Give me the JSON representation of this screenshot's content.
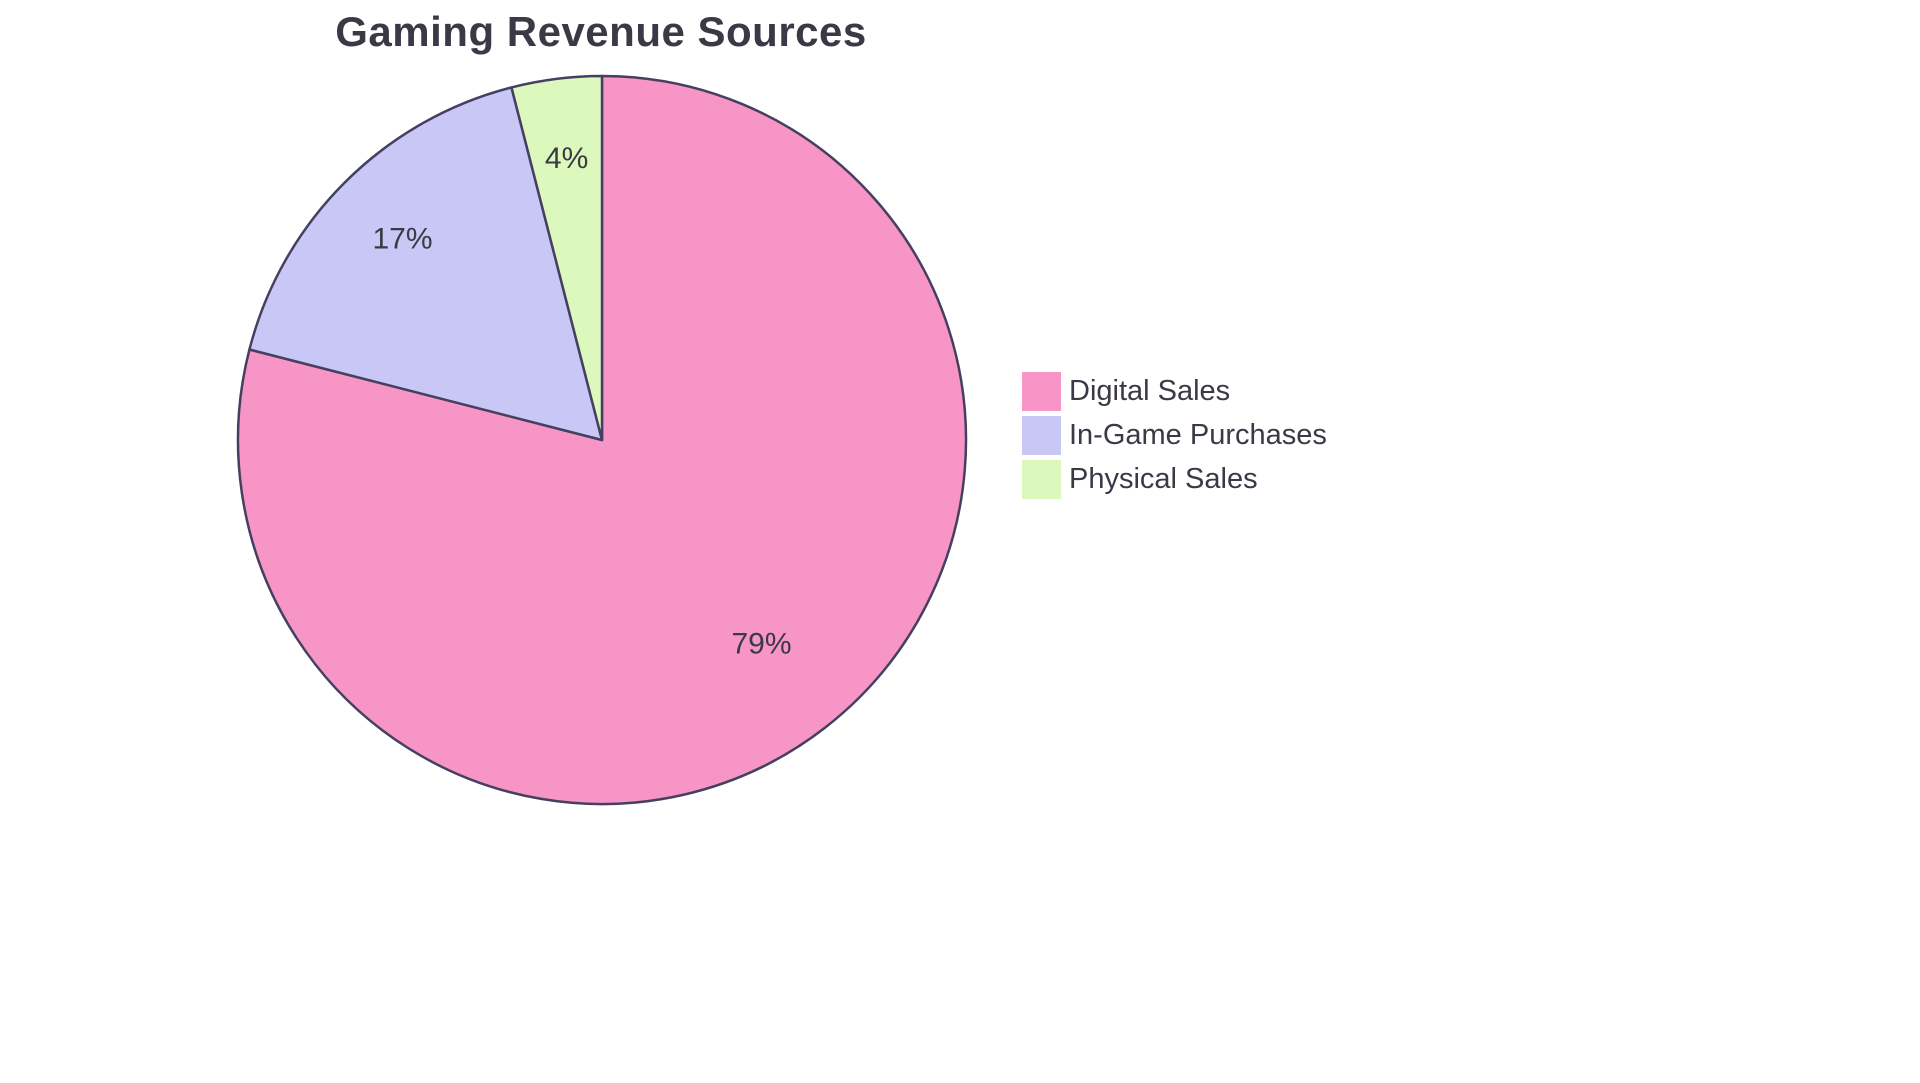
{
  "title": "Gaming Revenue Sources",
  "chart_data": {
    "type": "pie",
    "title": "Gaming Revenue Sources",
    "slices": [
      {
        "label": "Digital Sales",
        "value": 79,
        "percent_label": "79%",
        "color": "#F895C7"
      },
      {
        "label": "In-Game Purchases",
        "value": 17,
        "percent_label": "17%",
        "color": "#C9C7F5"
      },
      {
        "label": "Physical Sales",
        "value": 4,
        "percent_label": "4%",
        "color": "#DDF8BC"
      }
    ],
    "start_angle_deg": 0,
    "direction": "clockwise",
    "stroke_color": "#454060",
    "label_color": "#3A3A47",
    "legend_position": "right",
    "grid": false
  }
}
